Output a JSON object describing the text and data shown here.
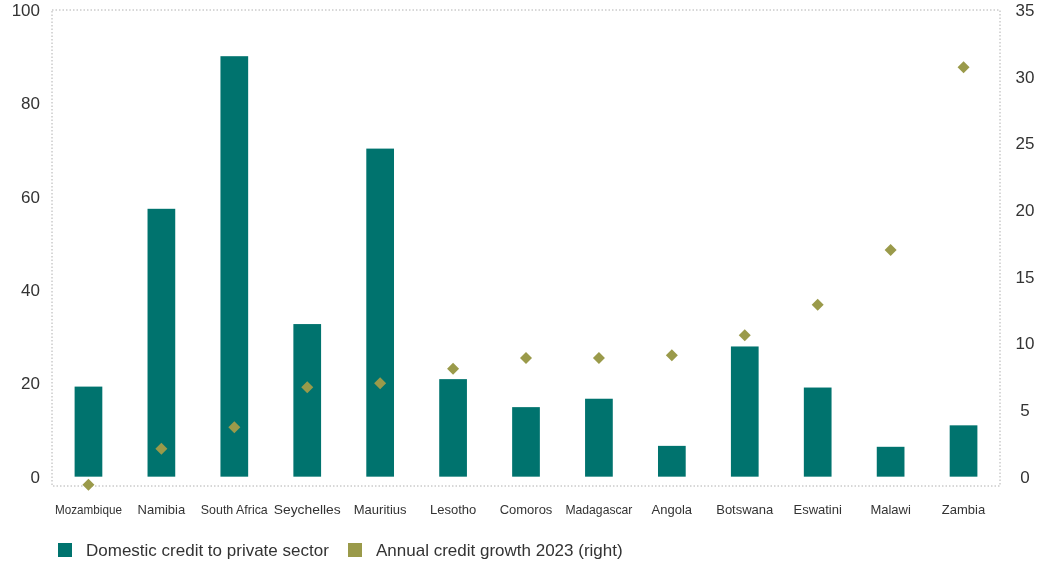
{
  "chart_data": {
    "type": "bar",
    "categories": [
      "Mozambique",
      "Namibia",
      "South Africa",
      "Seychelles",
      "Mauritius",
      "Lesotho",
      "Comoros",
      "Madagascar",
      "Angola",
      "Botswana",
      "Eswatini",
      "Malawi",
      "Zambia"
    ],
    "series": [
      {
        "name": "Domestic credit to private sector",
        "color": "#00736e",
        "values": [
          19.3,
          57.4,
          90.1,
          32.7,
          70.3,
          20.9,
          14.9,
          16.7,
          6.6,
          27.9,
          19.1,
          6.4,
          11.0
        ]
      },
      {
        "name": "Annual credit growth 2023 (right)",
        "type": "scatter",
        "axis": "y2",
        "marker": "diamond",
        "color": "#9a9a4a",
        "values": [
          -0.6,
          2.1,
          3.7,
          6.7,
          7.0,
          8.1,
          8.9,
          8.9,
          9.1,
          10.6,
          12.9,
          17.0,
          30.7
        ]
      }
    ],
    "ylim": [
      -2,
      100
    ],
    "yticks": [
      0,
      20,
      40,
      60,
      80,
      100
    ],
    "y2lim": [
      -0.7,
      35
    ],
    "y2ticks": [
      0,
      5,
      10,
      15,
      20,
      25,
      30,
      35
    ],
    "grid": false,
    "legend": "bottom"
  }
}
